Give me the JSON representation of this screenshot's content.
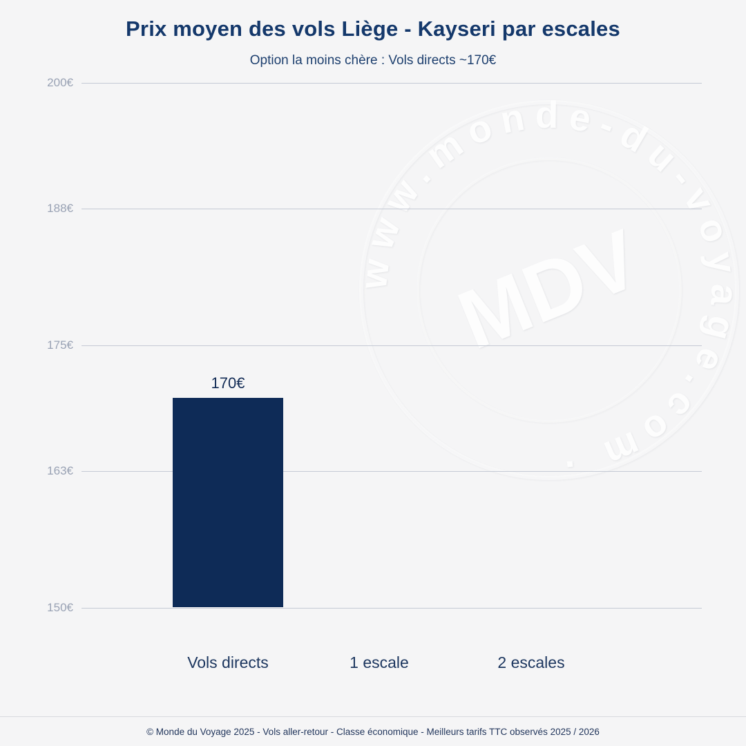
{
  "chart_data": {
    "type": "bar",
    "title": "Prix moyen des vols Liège - Kayseri par escales",
    "subtitle": "Option la moins chère : Vols directs ~170€",
    "categories": [
      "Vols directs",
      "1 escale",
      "2 escales"
    ],
    "values": [
      170,
      null,
      null
    ],
    "value_labels": [
      "170€",
      "",
      ""
    ],
    "ylim": [
      150,
      200
    ],
    "yticks": [
      150,
      163,
      175,
      188,
      200
    ],
    "ytick_labels": [
      "150€",
      "163€",
      "175€",
      "188€",
      "200€"
    ],
    "grid": true,
    "legend": "none",
    "bar_color": "#0e2b57",
    "currency": "€"
  },
  "watermark": {
    "ring_text": "www.monde-du-voyage.com ·",
    "center_text": "MDV"
  },
  "footer": {
    "text": "© Monde du Voyage 2025 - Vols aller-retour - Classe économique - Meilleurs tarifs TTC observés 2025 / 2026"
  },
  "colors": {
    "title": "#14386b",
    "subtitle": "#1d3f6e",
    "bar": "#0e2b57",
    "tick_label": "#99a2b4",
    "gridline": "#c4c9d4",
    "background": "#f5f5f6"
  }
}
